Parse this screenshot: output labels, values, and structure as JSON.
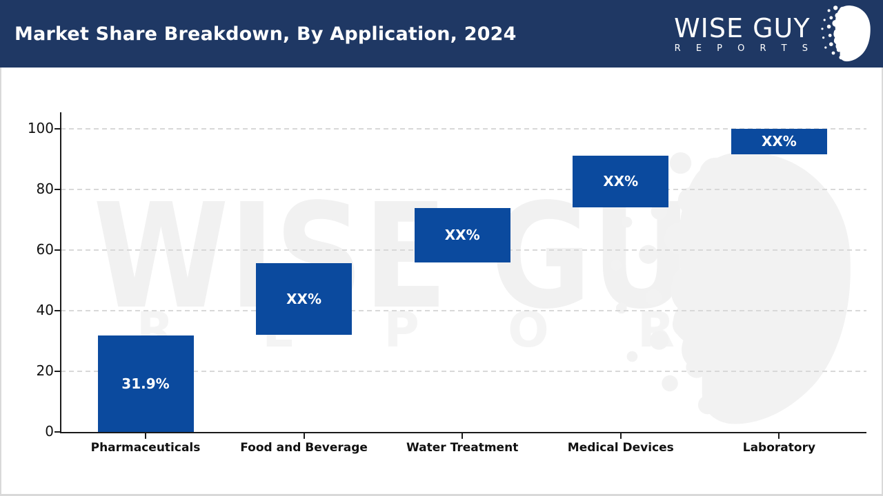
{
  "header": {
    "title": "Market Share Breakdown, By Application, 2024",
    "bg_color": "#1f3864",
    "logo_line1": "WISE GUY",
    "logo_line2": "R E P O R T S"
  },
  "watermark": {
    "line1": "WISE GUY",
    "line2": "R E P O R T S"
  },
  "chart_data": {
    "type": "bar",
    "subtype": "waterfall",
    "title": "Market Share Breakdown, By Application, 2024",
    "xlabel": "",
    "ylabel": "",
    "ylim": [
      0,
      105
    ],
    "yticks": [
      0,
      20,
      40,
      60,
      80,
      100
    ],
    "grid": "horizontal dashed",
    "legend": "none",
    "bar_color": "#0b4a9e",
    "bar_label_color": "#ffffff",
    "categories": [
      "Pharmaceuticals",
      "Food and Beverage",
      "Water Treatment",
      "Medical Devices",
      "Laboratory"
    ],
    "segments": [
      {
        "category": "Pharmaceuticals",
        "start": 0,
        "end": 31.9,
        "label": "31.9%"
      },
      {
        "category": "Food and Beverage",
        "start": 32.0,
        "end": 55.7,
        "label": "XX%"
      },
      {
        "category": "Water Treatment",
        "start": 55.9,
        "end": 73.9,
        "label": "XX%"
      },
      {
        "category": "Medical Devices",
        "start": 74.2,
        "end": 91.2,
        "label": "XX%"
      },
      {
        "category": "Laboratory",
        "start": 91.6,
        "end": 100.1,
        "label": "XX%"
      }
    ]
  }
}
